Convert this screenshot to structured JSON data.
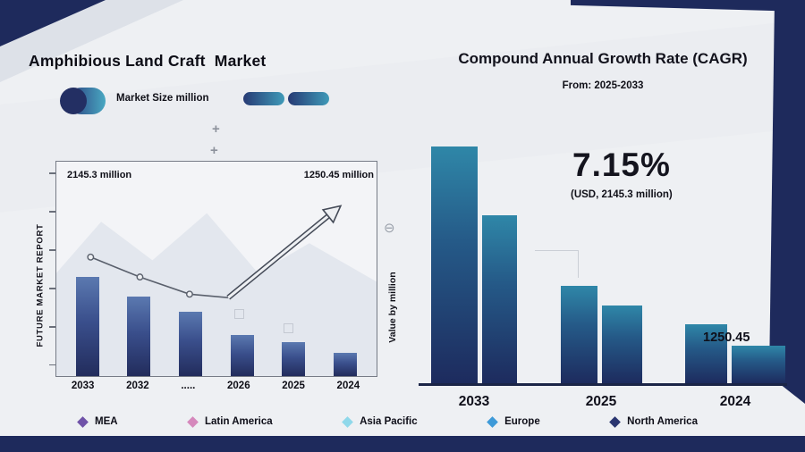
{
  "colors": {
    "navy": "#1e2a5c",
    "teal": "#2f87a8",
    "background": "#eef0f3"
  },
  "header": {
    "title": "Amphibious Land Craft  Market",
    "market_size_label": "Market Size million"
  },
  "decor": {
    "plus_top": "+",
    "plus_bottom": "+",
    "circle_minus": "⊖"
  },
  "left_chart": {
    "side_label": "FUTURE MARKET REPORT",
    "annotation_left": "2145.3 million",
    "annotation_right": "1250.45 million"
  },
  "right_chart": {
    "title": "Compound Annual Growth Rate (CAGR)",
    "subtitle": "From: 2025-2033",
    "cagr_value": "7.15%",
    "cagr_detail": "(USD, 2145.3 million)",
    "ylabel": "Value by million",
    "annotation": "1250.45"
  },
  "footer_legend": [
    {
      "label": "MEA",
      "color": "#6f52a8"
    },
    {
      "label": "Latin America",
      "color": "#d588bc"
    },
    {
      "label": "Asia Pacific",
      "color": "#8fd8ea"
    },
    {
      "label": "Europe",
      "color": "#3e9ad8"
    },
    {
      "label": "North America",
      "color": "#2a3570"
    }
  ],
  "chart_data": [
    {
      "type": "bar",
      "subtype": "bar-with-trend-line-and-arrow",
      "title": "Amphibious Land Craft Market",
      "series_label": "Market Size million",
      "categories": [
        "2033",
        "2032",
        ".....",
        "2026",
        "2025",
        "2024"
      ],
      "values": [
        100,
        80,
        65,
        41,
        34,
        23
      ],
      "value_scale": "relative bar height % (axis unlabeled)",
      "known_values_million": {
        "2033": 2145.3,
        "2024": 1250.45
      },
      "annotations": [
        "2145.3 million",
        "1250.45 million"
      ],
      "line": {
        "points_pct": [
          [
            10.7,
            55.5
          ],
          [
            26.1,
            46.2
          ],
          [
            41.6,
            38.2
          ],
          [
            53.7,
            36.6
          ]
        ],
        "arrow_to_pct": [
          88.8,
          79.4
        ]
      }
    },
    {
      "type": "bar",
      "title": "Compound Annual Growth Rate (CAGR)",
      "subtitle": "From: 2025-2033",
      "highlight": "7.15%",
      "highlight_detail": "(USD, 2145.3 million)",
      "ylabel": "Value by million",
      "categories": [
        "2033",
        "2025",
        "2024"
      ],
      "series": [
        {
          "name": "series-a",
          "values": [
            100,
            41,
            25
          ]
        },
        {
          "name": "series-b",
          "values": [
            71,
            33,
            16
          ]
        }
      ],
      "value_scale": "relative bar height % (axis unlabeled)",
      "annotation": "1250.45"
    }
  ]
}
